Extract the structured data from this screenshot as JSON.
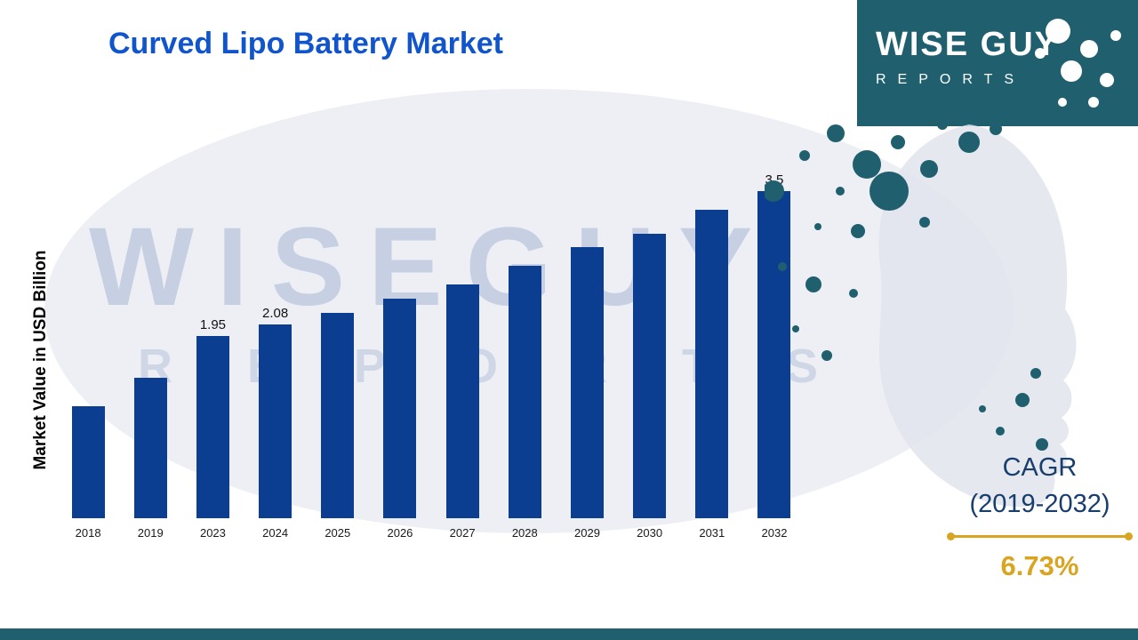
{
  "title": "Curved Lipo Battery Market",
  "colors": {
    "title": "#1155cc",
    "bar": "#0b3d91",
    "teal": "#20606e",
    "gold": "#d9a521",
    "cagr": "#173e6d",
    "watermark": "#a8b8d4"
  },
  "logo": {
    "line1": "WISE GUY",
    "line2": "REPORTS"
  },
  "watermark": {
    "line1": "WISEGUY",
    "line2": "REPORTS"
  },
  "cagr": {
    "label": "CAGR",
    "period": "(2019-2032)",
    "value": "6.73%"
  },
  "chart_data": {
    "type": "bar",
    "title": "Curved Lipo Battery Market",
    "xlabel": "",
    "ylabel": "Market Value in USD Billion",
    "categories": [
      "2018",
      "2019",
      "2023",
      "2024",
      "2025",
      "2026",
      "2027",
      "2028",
      "2029",
      "2030",
      "2031",
      "2032"
    ],
    "values": [
      1.2,
      1.5,
      1.95,
      2.08,
      2.2,
      2.35,
      2.5,
      2.7,
      2.9,
      3.05,
      3.3,
      3.5
    ],
    "data_labels": [
      "",
      "",
      "1.95",
      "2.08",
      "",
      "",
      "",
      "",
      "",
      "",
      "",
      "3.5"
    ],
    "ylim": [
      0,
      4
    ],
    "grid": false,
    "legend": false,
    "bar_color": "#0b3d91"
  }
}
